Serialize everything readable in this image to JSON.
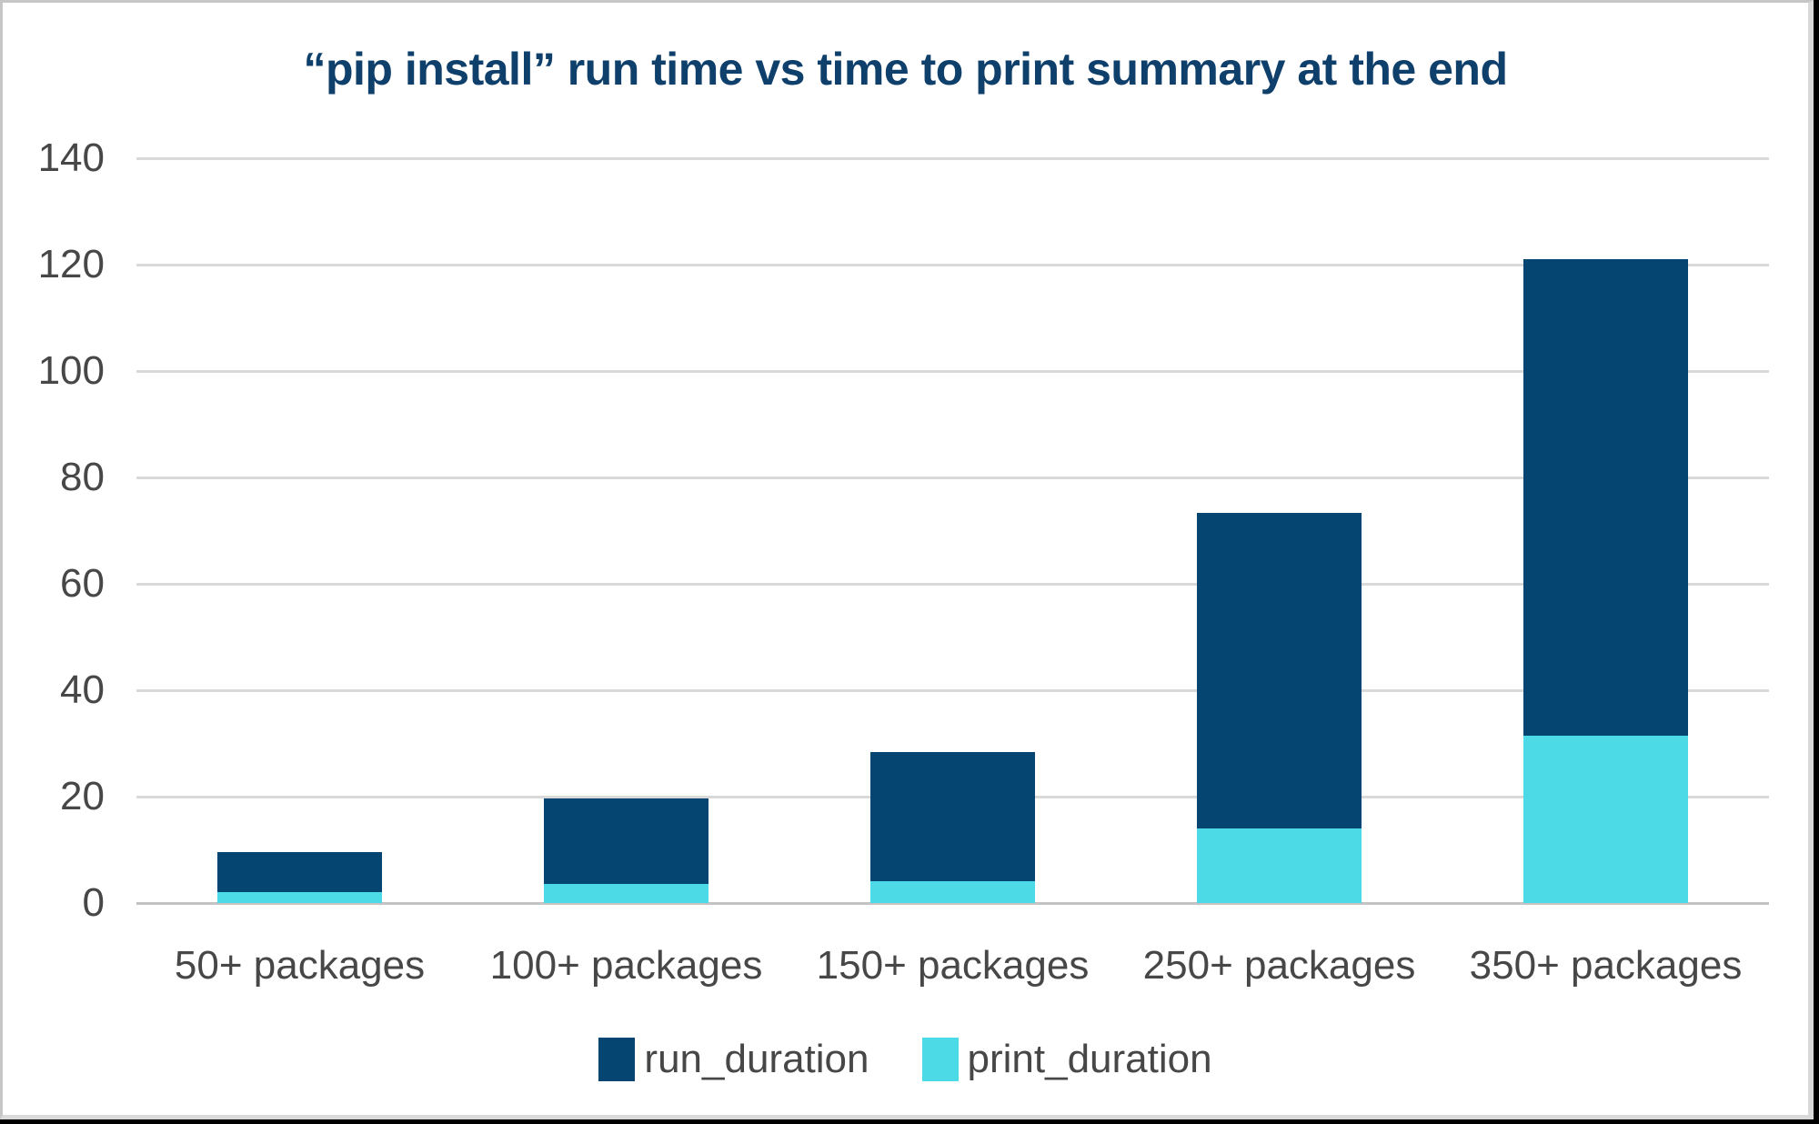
{
  "chart_data": {
    "type": "bar",
    "stacked": true,
    "title": "“pip install” run time vs time to print summary at the end",
    "categories": [
      "50+ packages",
      "100+ packages",
      "150+ packages",
      "250+ packages",
      "350+ packages"
    ],
    "series": [
      {
        "name": "run_duration",
        "color": "#054571",
        "values": [
          7.6,
          16.1,
          24.2,
          59.4,
          89.5
        ]
      },
      {
        "name": "print_duration",
        "color": "#4cdae6",
        "values": [
          2.0,
          3.6,
          4.1,
          14.0,
          31.5
        ]
      }
    ],
    "stack_order_bottom_to_top": [
      "print_duration",
      "run_duration"
    ],
    "stack_totals": [
      9.6,
      19.7,
      28.3,
      73.4,
      121.0
    ],
    "xlabel": "",
    "ylabel": "",
    "ylim": [
      0,
      140
    ],
    "yticks": [
      0,
      20,
      40,
      60,
      80,
      100,
      120,
      140
    ],
    "grid": true,
    "legend_position": "bottom",
    "colors": {
      "title": "#0f3f6b",
      "axis_labels": "#474747",
      "gridline": "#d9d9d9",
      "axis_line": "#c3c3c3",
      "plot_background": "#ffffff"
    }
  }
}
